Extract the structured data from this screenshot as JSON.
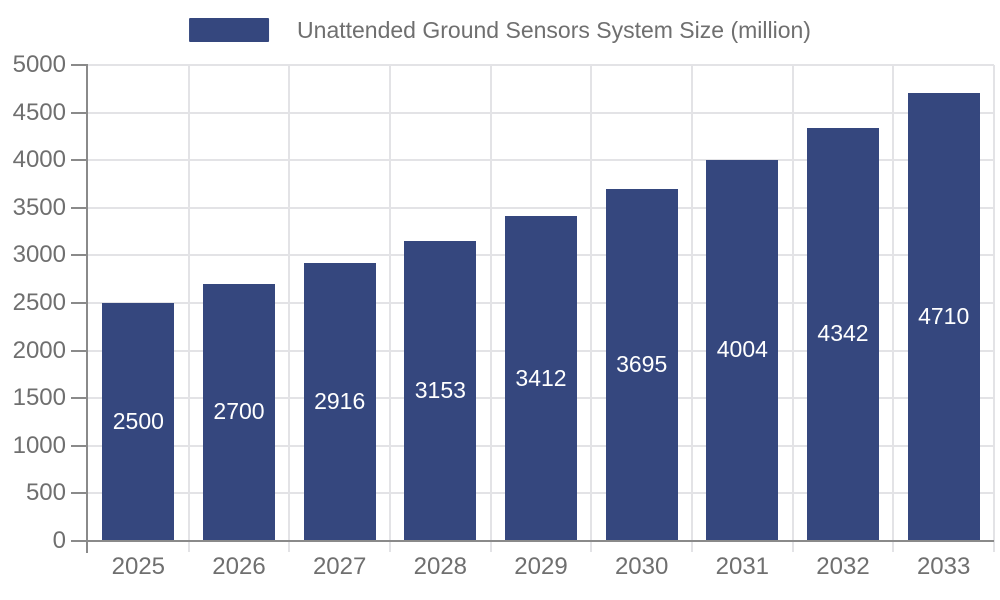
{
  "chart_data": {
    "type": "bar",
    "title": "",
    "legend": "Unattended Ground Sensors System Size (million)",
    "categories": [
      "2025",
      "2026",
      "2027",
      "2028",
      "2029",
      "2030",
      "2031",
      "2032",
      "2033"
    ],
    "values": [
      2500,
      2700,
      2916,
      3153,
      3412,
      3695,
      4004,
      4342,
      4710
    ],
    "xlabel": "",
    "ylabel": "",
    "ylim": [
      0,
      5000
    ],
    "ytick_step": 500,
    "grid": true,
    "legend_position": "top-center",
    "value_labels": "inside-center",
    "colors": {
      "bar": "#35477E",
      "grid": "#E3E3E6",
      "axis": "#8A8A8A",
      "tick_label": "#6F6F6F",
      "legend_label": "#6F6F6F",
      "value_label": "#FFFFFF",
      "background": "#FFFFFF"
    }
  }
}
